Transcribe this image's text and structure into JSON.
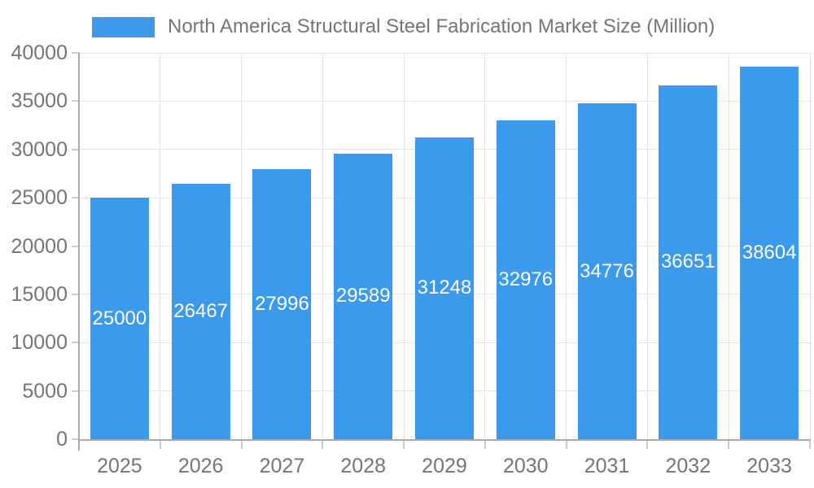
{
  "chart_data": {
    "type": "bar",
    "title": "North America Structural Steel Fabrication Market Size (Million)",
    "categories": [
      "2025",
      "2026",
      "2027",
      "2028",
      "2029",
      "2030",
      "2031",
      "2032",
      "2033"
    ],
    "values": [
      25000,
      26467,
      27996,
      29589,
      31248,
      32976,
      34776,
      36651,
      38604
    ],
    "xlabel": "",
    "ylabel": "",
    "ylim": [
      0,
      40000
    ],
    "yticks": [
      0,
      5000,
      10000,
      15000,
      20000,
      25000,
      30000,
      35000,
      40000
    ],
    "grid": true,
    "legend_position": "top",
    "colors": {
      "bar": "#3B9AEC",
      "bar_value_text": "#ffffff",
      "axis_text": "#757575",
      "axis_line": "#aaaaaa",
      "tick_line": "#cccccc",
      "gridline": "#e4e4e4",
      "background": "#ffffff"
    }
  }
}
